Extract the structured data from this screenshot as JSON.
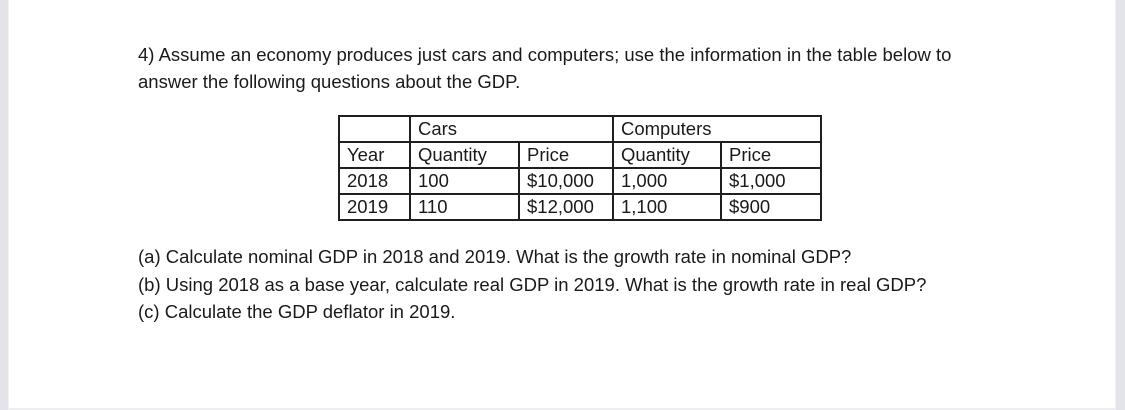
{
  "document": {
    "intro": {
      "line1": "4) Assume an economy produces just cars and computers; use the information in the table below to",
      "line2": "answer the following questions about the GDP."
    },
    "table": {
      "group_headers": {
        "cars": "Cars",
        "computers": "Computers"
      },
      "column_headers": {
        "year": "Year",
        "cars_quantity": "Quantity",
        "cars_price": "Price",
        "computers_quantity": "Quantity",
        "computers_price": "Price"
      },
      "rows": [
        {
          "year": "2018",
          "cars_quantity": "100",
          "cars_price": "$10,000",
          "computers_quantity": "1,000",
          "computers_price": "$1,000"
        },
        {
          "year": "2019",
          "cars_quantity": "110",
          "cars_price": "$12,000",
          "computers_quantity": "1,100",
          "computers_price": "$900"
        }
      ]
    },
    "questions": [
      "(a) Calculate nominal GDP in 2018 and 2019. What is the growth rate in nominal GDP?",
      "(b) Using 2018 as a base year, calculate real GDP in 2019. What is the growth rate in real GDP?",
      "(c) Calculate the GDP deflator in 2019."
    ]
  },
  "colors": {
    "page_background": "#ffffff",
    "edge_strip": "#e3e4ea",
    "text": "#1a1a1a",
    "table_border": "#1f1f1f"
  }
}
